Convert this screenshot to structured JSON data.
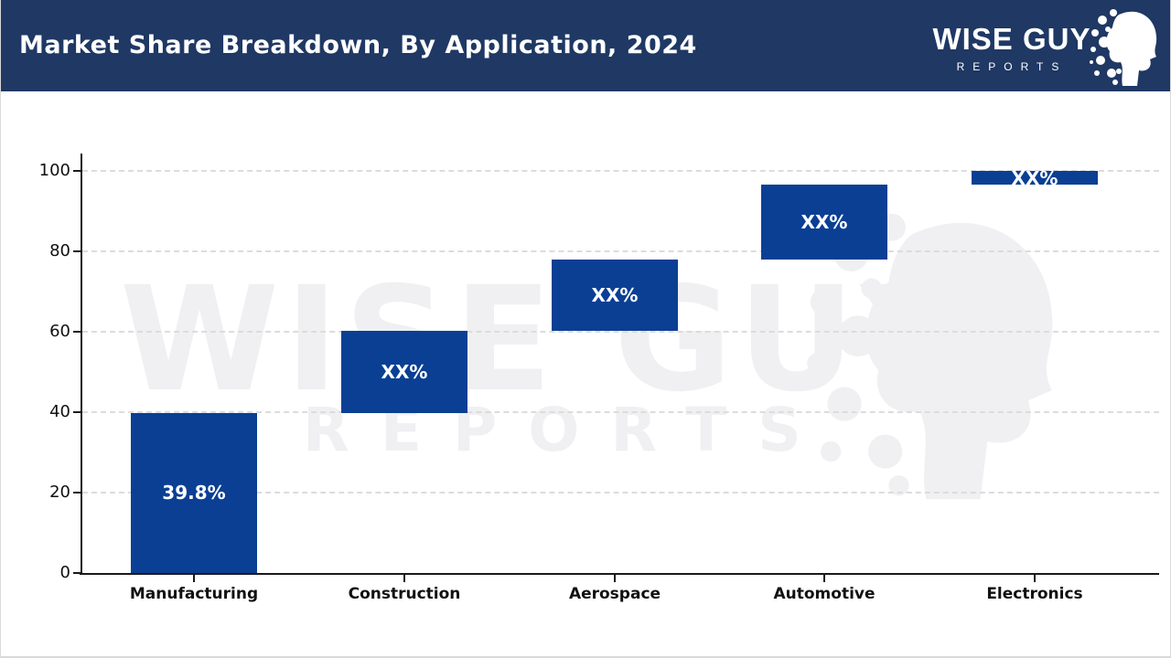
{
  "header": {
    "title": "Market Share Breakdown, By Application, 2024",
    "bg_color": "#1f3864",
    "logo": {
      "line1": "WISE GUY",
      "line2": "REPORTS"
    }
  },
  "watermark": {
    "line1": "WISE GUY",
    "line2": "REPORTS"
  },
  "chart_data": {
    "type": "bar",
    "subtype": "waterfall",
    "title": "Market Share Breakdown, By Application, 2024",
    "categories": [
      "Manufacturing",
      "Construction",
      "Aerospace",
      "Automotive",
      "Electronics"
    ],
    "segments": [
      {
        "category": "Manufacturing",
        "start": 0,
        "end": 39.8,
        "label": "39.8%"
      },
      {
        "category": "Construction",
        "start": 39.8,
        "end": 60.2,
        "label": "XX%"
      },
      {
        "category": "Aerospace",
        "start": 60.2,
        "end": 77.9,
        "label": "XX%"
      },
      {
        "category": "Automotive",
        "start": 77.9,
        "end": 96.5,
        "label": "XX%"
      },
      {
        "category": "Electronics",
        "start": 96.5,
        "end": 100,
        "label": "XX%"
      }
    ],
    "y_ticks": [
      0,
      20,
      40,
      60,
      80,
      100
    ],
    "ylim": [
      0,
      105
    ],
    "xlabel": "",
    "ylabel": "",
    "bar_color": "#0a3f94",
    "grid": "horizontal-dashed",
    "legend": "none"
  }
}
